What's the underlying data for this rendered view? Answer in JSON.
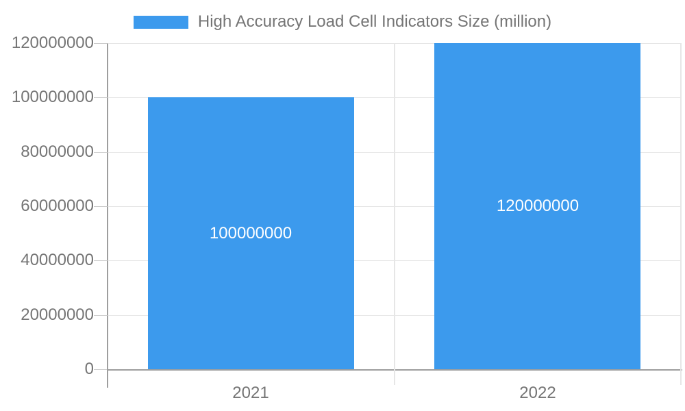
{
  "legend": {
    "label": "High Accuracy Load Cell Indicators Size (million)"
  },
  "chart_data": {
    "type": "bar",
    "title": "High Accuracy Load Cell Indicators Size (million)",
    "categories": [
      "2021",
      "2022"
    ],
    "values": [
      100000000,
      120000000
    ],
    "bar_labels": [
      "100000000",
      "120000000"
    ],
    "xlabel": "",
    "ylabel": "",
    "ylim": [
      0,
      120000000
    ],
    "yticks": [
      0,
      20000000,
      40000000,
      60000000,
      80000000,
      100000000,
      120000000
    ],
    "grid": "on",
    "legend_position": "top-center",
    "colors": {
      "bar": "#3C9AED",
      "text": "#757575",
      "axis": "#9E9E9E",
      "grid": "#E6E6E6",
      "tick": "#CCCCCC",
      "bar_label": "#FFFFFF",
      "background": "#FFFFFF"
    }
  }
}
